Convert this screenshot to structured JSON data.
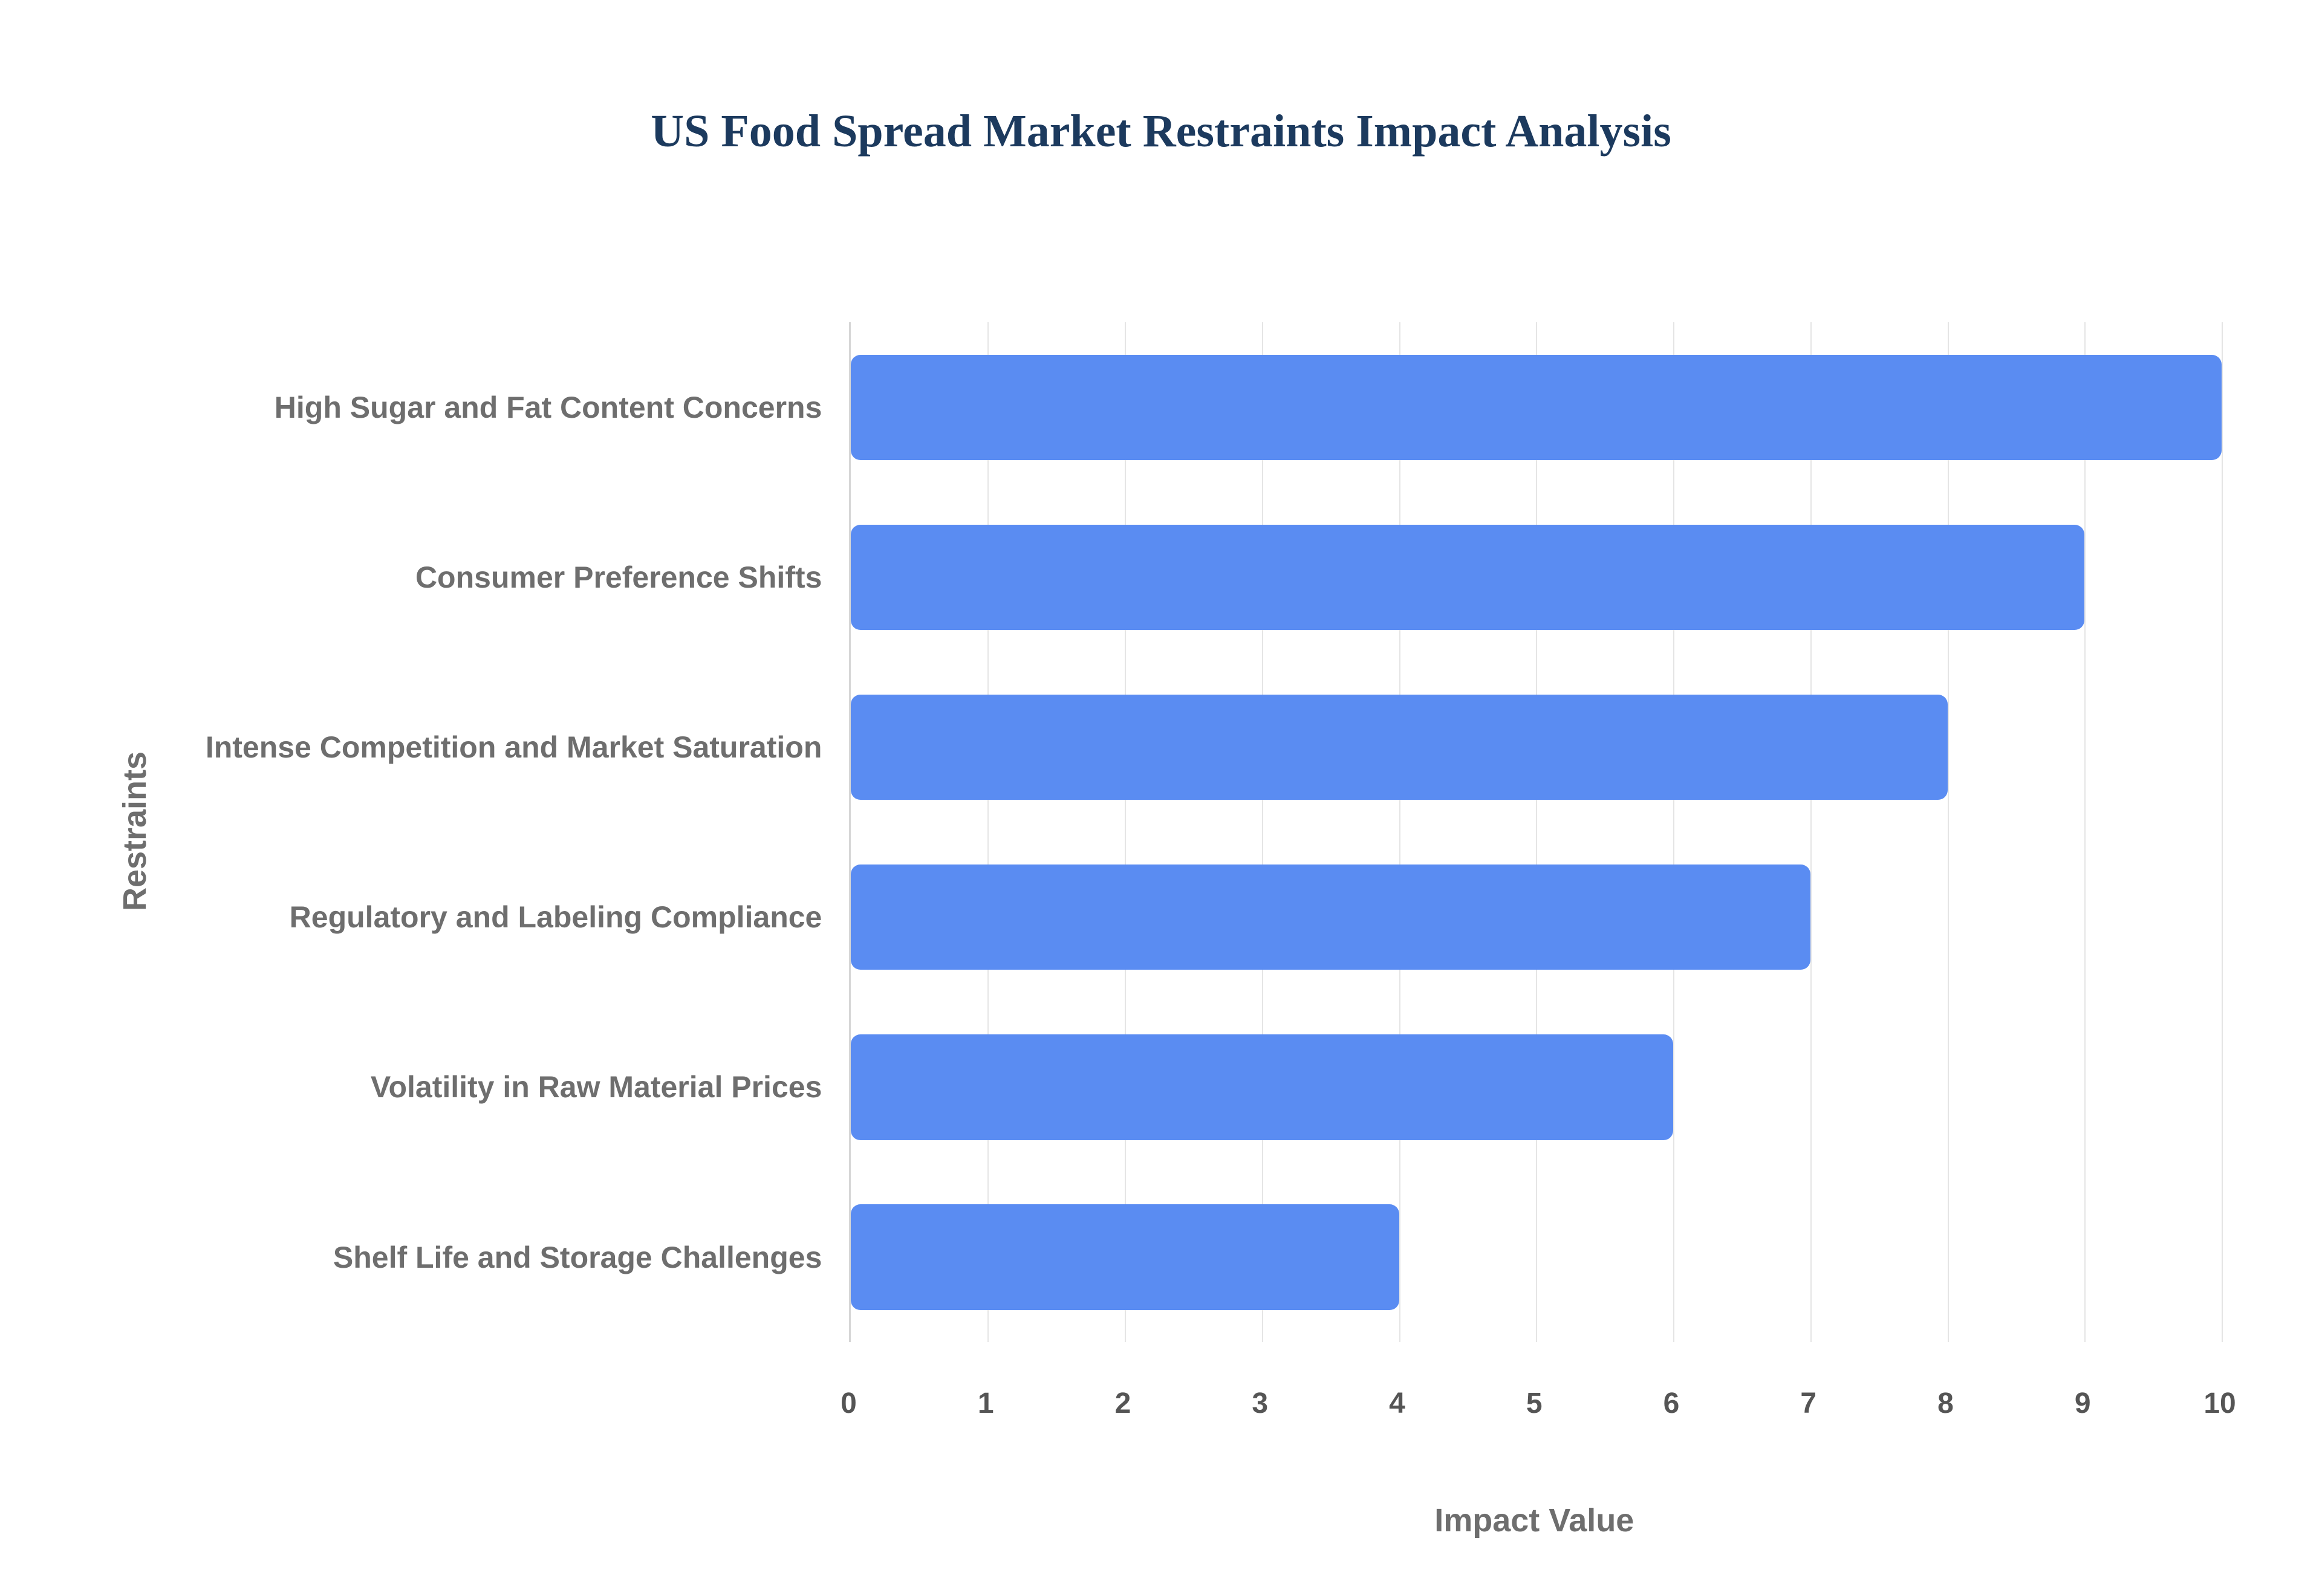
{
  "chart_data": {
    "type": "bar",
    "orientation": "horizontal",
    "title": "US Food Spread Market Restraints Impact Analysis",
    "categories": [
      "High Sugar and Fat Content Concerns",
      "Consumer Preference Shifts",
      "Intense Competition and Market Saturation",
      "Regulatory and Labeling Compliance",
      "Volatility in Raw Material Prices",
      "Shelf Life and Storage Challenges"
    ],
    "values": [
      10,
      9,
      8,
      7,
      6,
      4
    ],
    "xlabel": "Impact Value",
    "ylabel": "Restraints",
    "xlim": [
      0,
      10
    ],
    "xticks": [
      0,
      1,
      2,
      3,
      4,
      5,
      6,
      7,
      8,
      9,
      10
    ],
    "grid": true,
    "legend": "none",
    "colors": {
      "bar": "#5a8cf2",
      "title": "#1c3a5e",
      "axis_title": "#6e6e6e",
      "category_label": "#6e6e6e",
      "tick_label": "#555555",
      "gridline": "#e5e5e5"
    }
  }
}
